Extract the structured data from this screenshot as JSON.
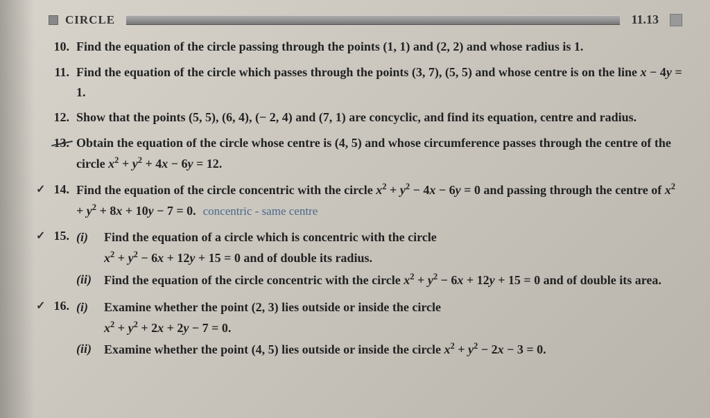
{
  "header": {
    "chapter": "CIRCLE",
    "page_number": "11.13"
  },
  "colors": {
    "page_bg_start": "#d8d4cc",
    "page_bg_end": "#b8b4ac",
    "text": "#2a2a2a",
    "bar_top": "#aaaaaa",
    "bar_bottom": "#777777",
    "handwriting": "#4a6a8a"
  },
  "problems": [
    {
      "num": "10.",
      "text": "Find the equation of the circle passing through the points (1, 1) and (2, 2) and whose radius is 1."
    },
    {
      "num": "11.",
      "text": "Find the equation of the circle which passes through the points (3, 7), (5, 5) and whose centre is on the line x − 4y = 1."
    },
    {
      "num": "12.",
      "text": "Show that the points (5, 5), (6, 4), (− 2, 4) and (7, 1) are concyclic, and find its equation, centre and radius."
    },
    {
      "num": "13.",
      "struck": true,
      "text": "Obtain the equation of the circle whose centre is (4, 5) and whose circumference passes through the centre of the circle x² + y² + 4x − 6y = 12."
    },
    {
      "num": "14.",
      "ticked": true,
      "text": "Find the equation of the circle concentric with the circle x² + y² − 4x − 6y = 0 and passing through the centre of x² + y² + 8x + 10y − 7 = 0.",
      "annotation": "concentric - same centre"
    },
    {
      "num": "15.",
      "ticked": true,
      "subs": [
        {
          "roman": "(i)",
          "text": "Find the equation of a circle which is concentric with the circle",
          "line2": "x² + y² − 6x + 12y + 15 = 0 and of double its radius."
        },
        {
          "roman": "(ii)",
          "text": "Find the equation of the circle concentric with the circle x² + y² − 6x + 12y + 15 = 0 and of double its area."
        }
      ]
    },
    {
      "num": "16.",
      "ticked": true,
      "subs": [
        {
          "roman": "(i)",
          "text": "Examine whether the point (2, 3) lies outside or inside the circle",
          "line2": "x² + y² + 2x + 2y − 7 = 0."
        },
        {
          "roman": "(ii)",
          "text": "Examine whether the point (4, 5) lies outside or inside the circle x² + y² − 2x − 3 = 0."
        }
      ]
    }
  ]
}
